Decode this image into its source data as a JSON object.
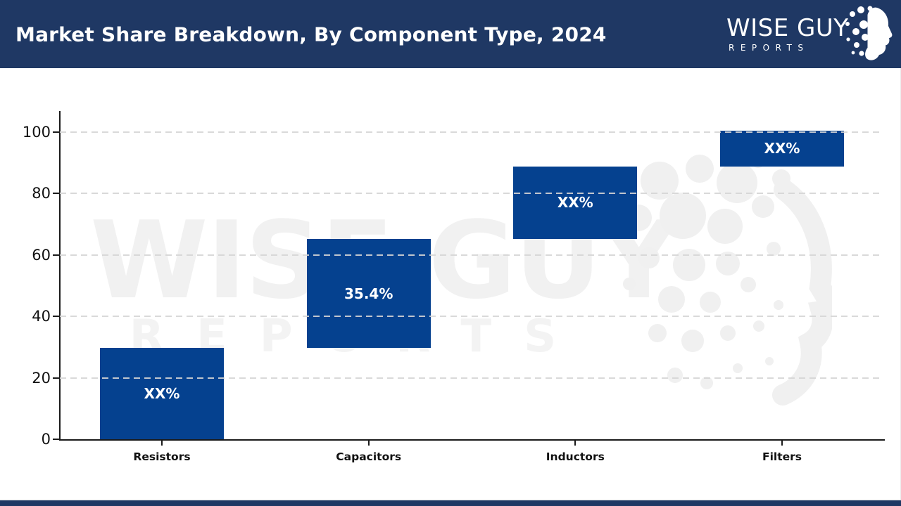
{
  "header": {
    "title": "Market Share Breakdown, By Component Type, 2024",
    "brand": {
      "line1": "WISE GUY",
      "line2": "REPORTS"
    }
  },
  "watermark": {
    "line1": "WISE GUY",
    "line2": "REPORTS"
  },
  "colors": {
    "header_bg": "#1f3864",
    "footer_bg": "#1f3864",
    "bar": "#05418f",
    "grid": "#d5d5d5",
    "axis": "#1a1a1a",
    "bar_label": "#ffffff",
    "watermark": "#f1f1f1"
  },
  "chart_data": {
    "type": "bar",
    "subtype": "floating-waterfall",
    "title": "Market Share Breakdown, By Component Type, 2024",
    "categories": [
      "Resistors",
      "Capacitors",
      "Inductors",
      "Filters"
    ],
    "segments": [
      {
        "category": "Resistors",
        "start": 0,
        "end": 29.7,
        "label": "XX%"
      },
      {
        "category": "Capacitors",
        "start": 29.7,
        "end": 65.1,
        "label": "35.4%"
      },
      {
        "category": "Inductors",
        "start": 65.1,
        "end": 88.8,
        "label": "XX%"
      },
      {
        "category": "Filters",
        "start": 88.8,
        "end": 100.4,
        "label": "XX%"
      }
    ],
    "yticks": [
      0,
      20,
      40,
      60,
      80,
      100
    ],
    "ylim": [
      0,
      106
    ],
    "xlabel": "",
    "ylabel": "",
    "grid": "dashed-horizontal",
    "legend": "none",
    "bar_color": "#05418f"
  }
}
